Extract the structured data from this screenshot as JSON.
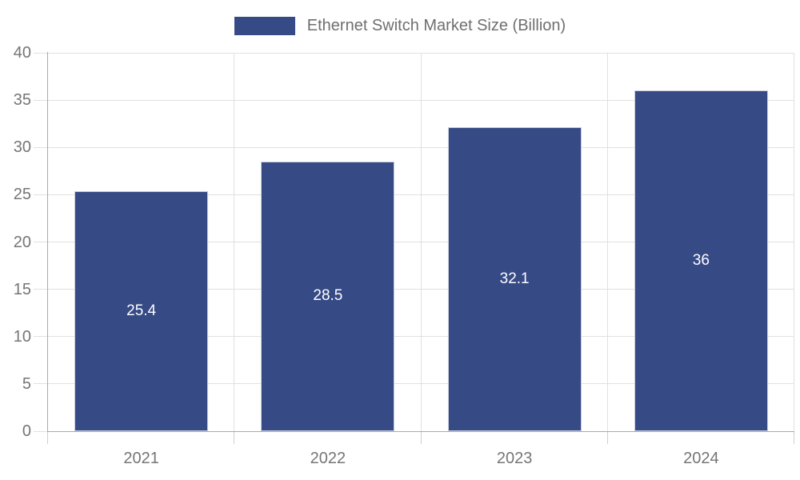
{
  "legend": {
    "label": "Ethernet Switch Market Size (Billion)"
  },
  "chart_data": {
    "type": "bar",
    "title": "Ethernet Switch Market Size (Billion)",
    "series_name": "Ethernet Switch Market Size (Billion)",
    "categories": [
      "2021",
      "2022",
      "2023",
      "2024"
    ],
    "values": [
      25.4,
      28.5,
      32.1,
      36
    ],
    "value_labels": [
      "25.4",
      "28.5",
      "32.1",
      "36"
    ],
    "xlabel": "",
    "ylabel": "",
    "ylim": [
      0,
      40
    ],
    "y_ticks": [
      0,
      5,
      10,
      15,
      20,
      25,
      30,
      35,
      40
    ],
    "grid": true,
    "legend_position": "top-center",
    "value_label_position": "inside-center"
  },
  "colors": {
    "bar": "#364a85",
    "bar_border": "#c9cede",
    "grid": "#e0e0e0",
    "axis": "#aaaaaa",
    "x_tick": "#cfcfcf",
    "tick_label": "#757575",
    "legend_text": "#6f6f6f",
    "value_label": "#ffffff",
    "background": "#ffffff"
  }
}
